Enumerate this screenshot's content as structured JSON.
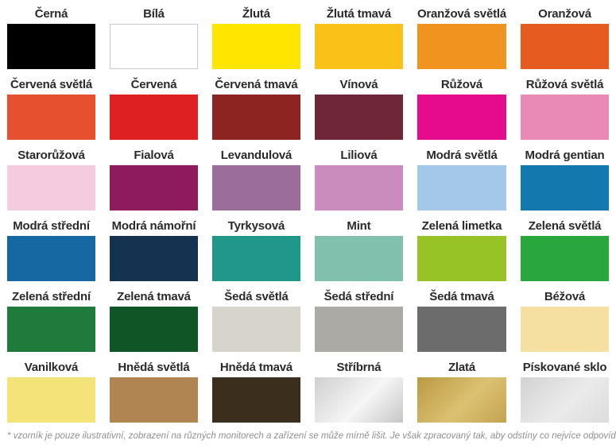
{
  "footnote": "* vzorník je pouze ilustrativní, zobrazení na různých monitorech a zařízení se může mírně lišit. Je však zpracovaný tak, aby odstíny co nejvíce odpovídaly.",
  "grid": {
    "columns": 6,
    "rows": 6
  },
  "colors": {
    "background": "#ffffff",
    "label_text": "#2a2a2a",
    "footnote_text": "#8f8f8f",
    "white_swatch_border": "#c8c8c8"
  },
  "swatches": [
    {
      "label": "Černá",
      "color": "#000000"
    },
    {
      "label": "Bílá",
      "color": "#ffffff",
      "border": "#c8c8c8"
    },
    {
      "label": "Žlutá",
      "color": "#ffe500"
    },
    {
      "label": "Žlutá tmavá",
      "color": "#fac219"
    },
    {
      "label": "Oranžová světlá",
      "color": "#f0941f"
    },
    {
      "label": "Oranžová",
      "color": "#e55b20"
    },
    {
      "label": "Červená světlá",
      "color": "#e6502f"
    },
    {
      "label": "Červená",
      "color": "#df2020"
    },
    {
      "label": "Červená tmavá",
      "color": "#8e2421"
    },
    {
      "label": "Vínová",
      "color": "#6f2638"
    },
    {
      "label": "Růžová",
      "color": "#e50b8c"
    },
    {
      "label": "Růžová světlá",
      "color": "#e989b5"
    },
    {
      "label": "Starorůžová",
      "color": "#f5cbe0"
    },
    {
      "label": "Fialová",
      "color": "#8e1b5c"
    },
    {
      "label": "Levandulová",
      "color": "#9b6d9b"
    },
    {
      "label": "Liliová",
      "color": "#c98cbc"
    },
    {
      "label": "Modrá světlá",
      "color": "#a4c8e9"
    },
    {
      "label": "Modrá gentian",
      "color": "#1378ae"
    },
    {
      "label": "Modrá střední",
      "color": "#1668a3"
    },
    {
      "label": "Modrá námořní",
      "color": "#153350"
    },
    {
      "label": "Tyrkysová",
      "color": "#1f9789"
    },
    {
      "label": "Mint",
      "color": "#80c0ad"
    },
    {
      "label": "Zelená limetka",
      "color": "#97c327"
    },
    {
      "label": "Zelená světlá",
      "color": "#29a63c"
    },
    {
      "label": "Zelená střední",
      "color": "#1e7b3b"
    },
    {
      "label": "Zelená tmavá",
      "color": "#0f5525"
    },
    {
      "label": "Šedá světlá",
      "color": "#d7d4cc"
    },
    {
      "label": "Šedá střední",
      "color": "#acaaa4"
    },
    {
      "label": "Šedá tmavá",
      "color": "#6c6c6c"
    },
    {
      "label": "Béžová",
      "color": "#f6e0a1"
    },
    {
      "label": "Vanilková",
      "color": "#f3e379"
    },
    {
      "label": "Hnědá světlá",
      "color": "#b18551"
    },
    {
      "label": "Hnědá tmavá",
      "color": "#3c2e1c"
    },
    {
      "label": "Stříbrná",
      "gradient": [
        "#cfcfcf",
        "#f6f6f6",
        "#c6c6c6"
      ]
    },
    {
      "label": "Zlatá",
      "gradient": [
        "#ba9941",
        "#dcc173",
        "#c3a350"
      ]
    },
    {
      "label": "Pískované sklo",
      "gradient": [
        "#d2d2d2",
        "#ebebeb",
        "#dcdcdc"
      ]
    }
  ]
}
